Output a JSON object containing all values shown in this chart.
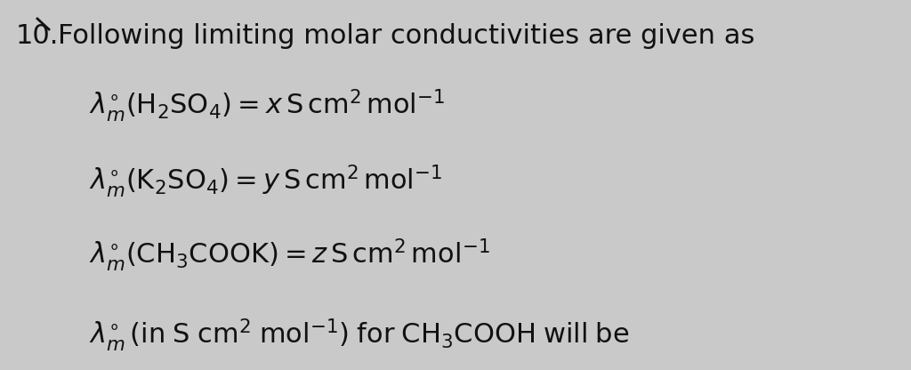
{
  "background_color": "#c9c9c9",
  "title_text": "10.–  Following limiting molar conductivities are given as",
  "line1": "$\\lambda_m^{\\circ}(\\mathrm{H_2SO_4}) = x\\,\\mathrm{S\\,cm^2\\,mol^{-1}}$",
  "line2": "$\\lambda_m^{\\circ}(\\mathrm{K_2SO_4}) = y\\,\\mathrm{S\\,cm^2\\,mol^{-1}}$",
  "line3": "$\\lambda_m^{\\circ}(\\mathrm{CH_3COOK}) = z\\,\\mathrm{S\\,cm^2\\,mol^{-1}}$",
  "line4": "$\\lambda_m^{\\circ}\\,(\\mathrm{in\\;S\\;cm^2\\;mol^{-1}})\\;\\mathrm{for\\;CH_3COOH\\;will\\;be}$",
  "title_fontsize": 22,
  "line_fontsize": 22,
  "text_color": "#111111"
}
